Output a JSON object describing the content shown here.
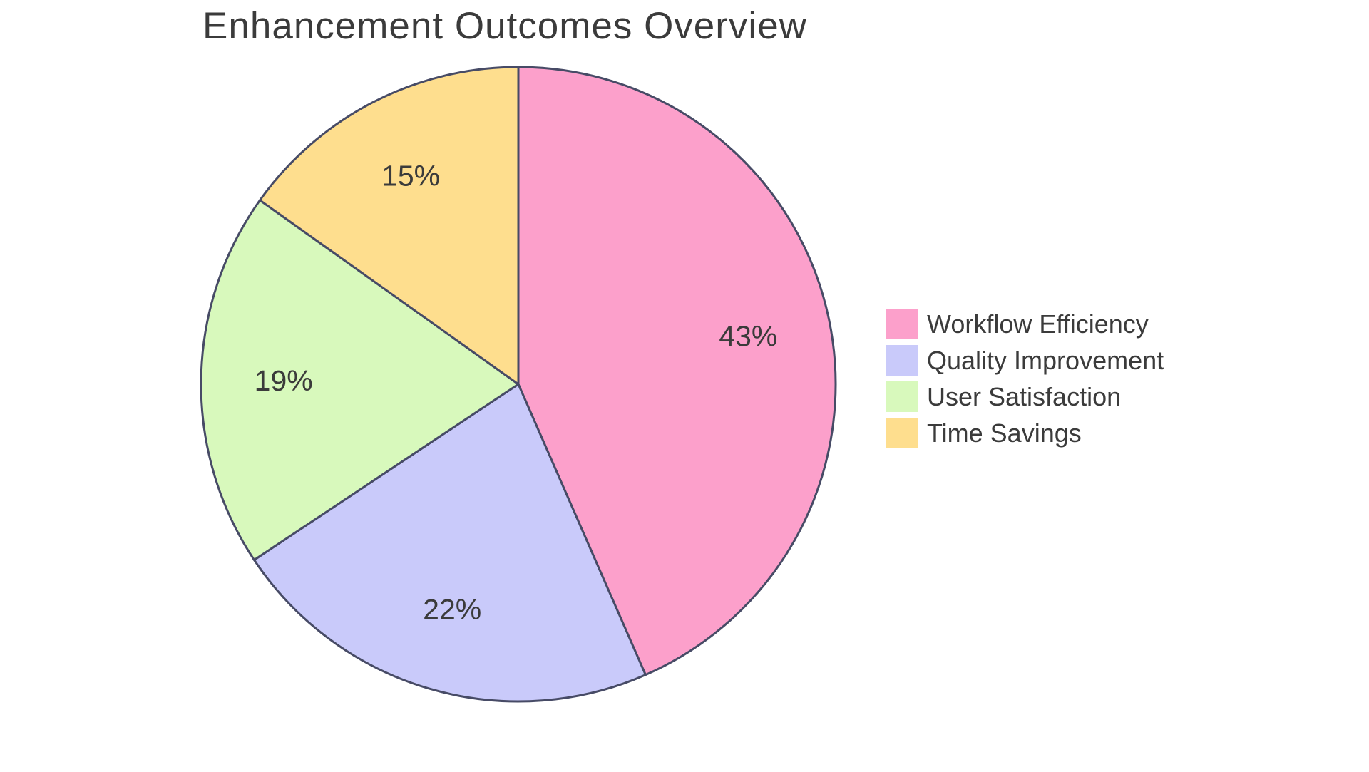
{
  "chart_data": {
    "type": "pie",
    "title": "Enhancement Outcomes Overview",
    "slices": [
      {
        "label": "Workflow Efficiency",
        "value": 43,
        "pct_label": "43%",
        "color": "#FCA0CB"
      },
      {
        "label": "Quality Improvement",
        "value": 22,
        "pct_label": "22%",
        "color": "#C9CAFA"
      },
      {
        "label": "User Satisfaction",
        "value": 19,
        "pct_label": "19%",
        "color": "#D8F9BC"
      },
      {
        "label": "Time Savings",
        "value": 15,
        "pct_label": "15%",
        "color": "#FEDE8E"
      }
    ],
    "start_angle": "12-oclock",
    "direction": "clockwise",
    "legend_position": "right",
    "slice_border_color": "#474B66",
    "percent_label_color": "#3B3B3B",
    "title_color": "#3B3B3B",
    "legend_text_color": "#3B3B3B",
    "background_color": "#FFFFFF"
  }
}
